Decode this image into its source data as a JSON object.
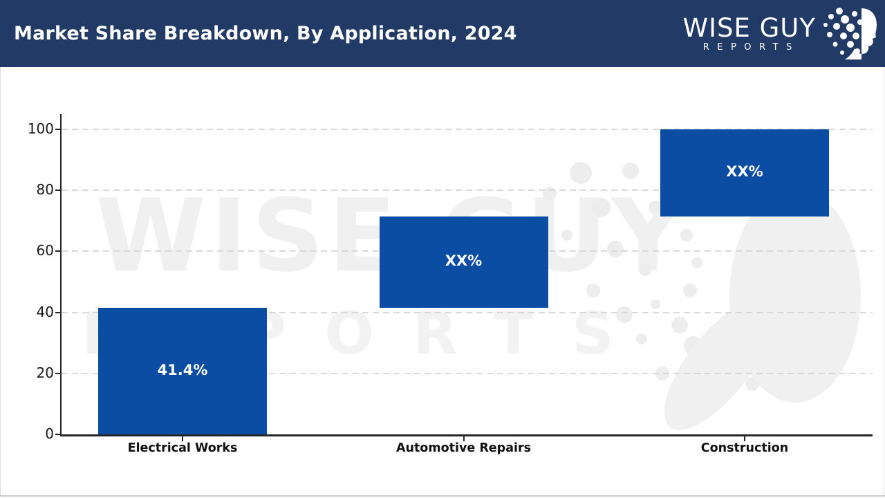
{
  "header": {
    "title": "Market Share Breakdown, By Application, 2024",
    "bg_color": "#213a66",
    "logo": {
      "line1": "WISE GUY",
      "line2": "REPORTS"
    }
  },
  "watermark": {
    "line1": "WISE GUY",
    "line2": "REPORTS"
  },
  "chart_data": {
    "type": "bar",
    "variant": "waterfall-floating-bars",
    "title": "Market Share Breakdown, By Application, 2024",
    "categories": [
      "Electrical Works",
      "Automotive Repairs",
      "Construction"
    ],
    "series": [
      {
        "name": "Market Share (%)",
        "starts": [
          0,
          41.4,
          71.4
        ],
        "ends": [
          41.4,
          71.4,
          100
        ],
        "labels": [
          "41.4%",
          "XX%",
          "XX%"
        ]
      }
    ],
    "xlabel": "",
    "ylabel": "",
    "yticks": [
      0,
      20,
      40,
      60,
      80,
      100
    ],
    "ylim": [
      0,
      105
    ],
    "grid": "horizontal-dashed",
    "legend": "none",
    "bar_color": "#0b4da2",
    "bar_label_color": "#ffffff",
    "axis_color": "#262626",
    "grid_color": "#d9d9d9",
    "tick_label_color": "#1a1a1a"
  }
}
